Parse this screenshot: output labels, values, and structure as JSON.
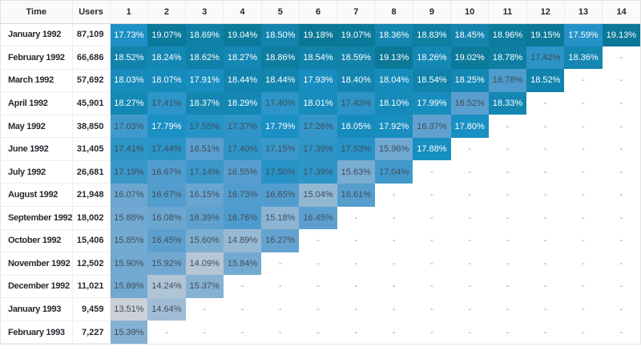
{
  "chart_data": {
    "type": "heatmap",
    "columns": [
      "Time",
      "Users",
      "1",
      "2",
      "3",
      "4",
      "5",
      "6",
      "7",
      "8",
      "9",
      "10",
      "11",
      "12",
      "13",
      "14"
    ],
    "value_suffix": "%",
    "empty_marker": "-",
    "rows": [
      {
        "time": "January 1992",
        "users": "87,109",
        "values": [
          17.73,
          19.07,
          18.69,
          19.04,
          18.5,
          19.18,
          19.07,
          18.36,
          18.83,
          18.45,
          18.96,
          19.15,
          17.59,
          19.13
        ]
      },
      {
        "time": "February 1992",
        "users": "66,686",
        "values": [
          18.52,
          18.24,
          18.62,
          18.27,
          18.86,
          18.54,
          18.59,
          19.13,
          18.26,
          19.02,
          18.78,
          17.42,
          18.36,
          null
        ]
      },
      {
        "time": "March 1992",
        "users": "57,692",
        "values": [
          18.03,
          18.07,
          17.91,
          18.44,
          18.44,
          17.93,
          18.4,
          18.04,
          18.54,
          18.25,
          16.78,
          18.52,
          null,
          null
        ]
      },
      {
        "time": "April 1992",
        "users": "45,901",
        "values": [
          18.27,
          17.41,
          18.37,
          18.29,
          17.4,
          18.01,
          17.43,
          18.1,
          17.99,
          16.52,
          18.33,
          null,
          null,
          null
        ]
      },
      {
        "time": "May 1992",
        "users": "38,850",
        "values": [
          17.03,
          17.79,
          17.55,
          17.37,
          17.79,
          17.26,
          18.05,
          17.92,
          16.37,
          17.8,
          null,
          null,
          null,
          null
        ]
      },
      {
        "time": "June 1992",
        "users": "31,405",
        "values": [
          17.41,
          17.44,
          16.51,
          17.4,
          17.15,
          17.39,
          17.53,
          15.96,
          17.88,
          null,
          null,
          null,
          null,
          null
        ]
      },
      {
        "time": "July 1992",
        "users": "26,681",
        "values": [
          17.19,
          16.67,
          17.14,
          16.55,
          17.5,
          17.39,
          15.63,
          17.04,
          null,
          null,
          null,
          null,
          null,
          null
        ]
      },
      {
        "time": "August 1992",
        "users": "21,948",
        "values": [
          16.07,
          16.67,
          16.15,
          16.73,
          16.65,
          15.04,
          16.61,
          null,
          null,
          null,
          null,
          null,
          null,
          null
        ]
      },
      {
        "time": "September 1992",
        "users": "18,002",
        "values": [
          15.88,
          16.08,
          16.39,
          16.76,
          15.18,
          16.45,
          null,
          null,
          null,
          null,
          null,
          null,
          null,
          null
        ]
      },
      {
        "time": "October 1992",
        "users": "15,406",
        "values": [
          15.85,
          16.45,
          15.6,
          14.89,
          16.27,
          null,
          null,
          null,
          null,
          null,
          null,
          null,
          null,
          null
        ]
      },
      {
        "time": "November 1992",
        "users": "12,502",
        "values": [
          15.9,
          15.92,
          14.09,
          15.84,
          null,
          null,
          null,
          null,
          null,
          null,
          null,
          null,
          null,
          null
        ]
      },
      {
        "time": "December 1992",
        "users": "11,021",
        "values": [
          15.89,
          14.24,
          15.37,
          null,
          null,
          null,
          null,
          null,
          null,
          null,
          null,
          null,
          null,
          null
        ]
      },
      {
        "time": "January 1993",
        "users": "9,459",
        "values": [
          13.51,
          14.64,
          null,
          null,
          null,
          null,
          null,
          null,
          null,
          null,
          null,
          null,
          null,
          null
        ]
      },
      {
        "time": "February 1993",
        "users": "7,227",
        "values": [
          15.39,
          null,
          null,
          null,
          null,
          null,
          null,
          null,
          null,
          null,
          null,
          null,
          null,
          null
        ]
      }
    ],
    "colormap": {
      "stops": [
        {
          "value": 13.5,
          "color": "#cbd0d8"
        },
        {
          "value": 16.5,
          "color": "#5b9fcf"
        },
        {
          "value": 17.8,
          "color": "#1990c4"
        },
        {
          "value": 19.2,
          "color": "#0a7795"
        }
      ],
      "white_text_threshold": 17.57,
      "white_text_color": "#ffffff",
      "dark_text_color": "#414d59",
      "empty_text_color": "#8f969c"
    }
  }
}
